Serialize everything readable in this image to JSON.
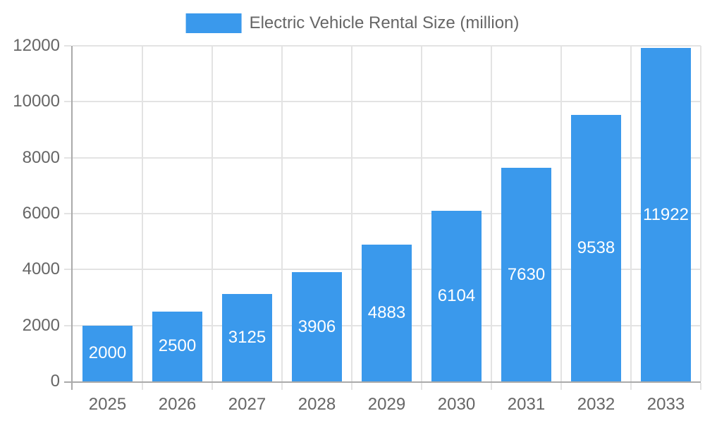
{
  "chart_data": {
    "type": "bar",
    "title": "",
    "legend_label": "Electric Vehicle Rental Size (million)",
    "legend_position": "top",
    "categories": [
      "2025",
      "2026",
      "2027",
      "2028",
      "2029",
      "2030",
      "2031",
      "2032",
      "2033"
    ],
    "values": [
      2000,
      2500,
      3125,
      3906,
      4883,
      6104,
      7630,
      9538,
      11922
    ],
    "xlabel": "",
    "ylabel": "",
    "ylim": [
      0,
      12000
    ],
    "yticks": [
      0,
      2000,
      4000,
      6000,
      8000,
      10000,
      12000
    ],
    "grid": true,
    "bar_value_labels_inside": true,
    "colors": {
      "bar": "#3a99ec",
      "bar_label_text": "#ffffff",
      "tick_text": "#666666",
      "gridline": "#e3e3e3",
      "axis_line": "#aaaaaa",
      "background": "#ffffff"
    }
  }
}
